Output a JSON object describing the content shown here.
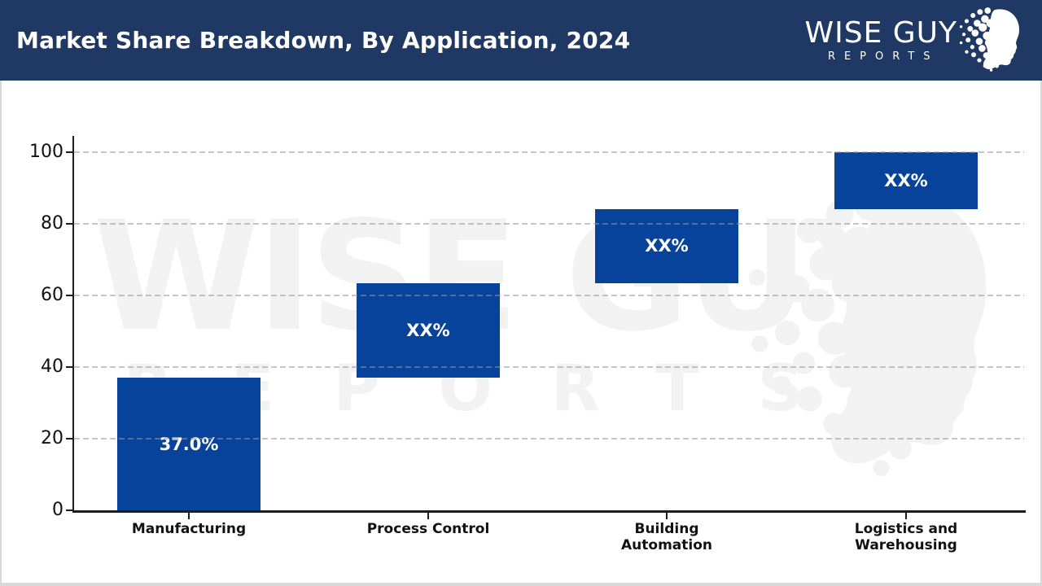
{
  "header": {
    "title": "Market Share Breakdown, By Application, 2024",
    "logo": {
      "line1": "WISE GUY",
      "line2": "REPORTS"
    }
  },
  "watermark": {
    "line1": "WISE GUY",
    "line2": "REPORTS"
  },
  "chart_data": {
    "type": "bar",
    "subtype": "waterfall",
    "title": "Market Share Breakdown, By Application, 2024",
    "categories": [
      "Manufacturing",
      "Process Control",
      "Building Automation",
      "Logistics and Warehousing"
    ],
    "category_label_lines": [
      [
        "Manufacturing"
      ],
      [
        "Process Control"
      ],
      [
        "Building",
        "Automation"
      ],
      [
        "Logistics and",
        "Warehousing"
      ]
    ],
    "segments": [
      {
        "category": "Manufacturing",
        "start": 0,
        "end": 37,
        "label": "37.0%"
      },
      {
        "category": "Process Control",
        "start": 37,
        "end": 63.5,
        "label": "XX%"
      },
      {
        "category": "Building Automation",
        "start": 63.5,
        "end": 84,
        "label": "XX%"
      },
      {
        "category": "Logistics and Warehousing",
        "start": 84,
        "end": 100,
        "label": "XX%"
      }
    ],
    "xlabel": "",
    "ylabel": "",
    "ylim": [
      0,
      100
    ],
    "yticks": [
      0,
      20,
      40,
      60,
      80,
      100
    ],
    "grid": "horizontal-dashed",
    "legend": null,
    "colors": {
      "bar": "#08439b",
      "bar_label_text": "#ffffff"
    }
  },
  "colors": {
    "header_bg": "#1f3864",
    "body_bg": "#ffffff",
    "watermark": "#f2f2f2",
    "axis": "#1c1c1c",
    "border": "#d9d9d9"
  }
}
